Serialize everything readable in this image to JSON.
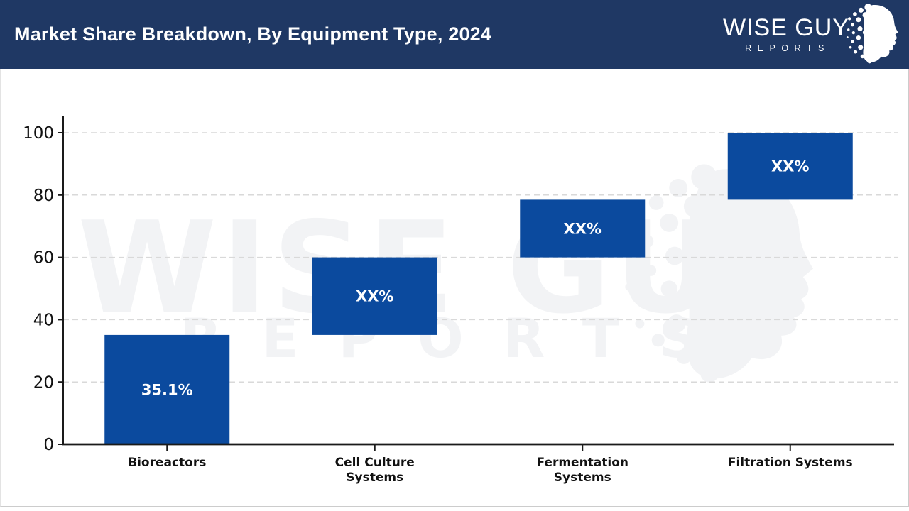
{
  "header": {
    "title": "Market Share Breakdown, By Equipment Type, 2024",
    "logo": {
      "name": "WISE GUY",
      "sub": "REPORTS"
    }
  },
  "watermark": {
    "main": "WISE GU",
    "sub": "REPORTS"
  },
  "chart_data": {
    "type": "bar",
    "subtype": "waterfall",
    "title": "Market Share Breakdown, By Equipment Type, 2024",
    "categories": [
      [
        "Bioreactors"
      ],
      [
        "Cell Culture",
        "Systems"
      ],
      [
        "Fermentation",
        "Systems"
      ],
      [
        "Filtration Systems"
      ]
    ],
    "segments": [
      {
        "category": "Bioreactors",
        "start": 0,
        "end": 35.1,
        "value": 35.1,
        "label": "35.1%"
      },
      {
        "category": "Cell Culture Systems",
        "start": 35.1,
        "end": 60,
        "value": 24.9,
        "label": "XX%"
      },
      {
        "category": "Fermentation Systems",
        "start": 60,
        "end": 78.5,
        "value": 18.5,
        "label": "XX%"
      },
      {
        "category": "Filtration Systems",
        "start": 78.5,
        "end": 100,
        "value": 21.5,
        "label": "XX%"
      }
    ],
    "yticks": [
      0,
      20,
      40,
      60,
      80,
      100
    ],
    "ylim": [
      0,
      105
    ],
    "xlabel": "",
    "ylabel": "",
    "grid": "horizontal-dashed",
    "legend": "none"
  },
  "colors": {
    "header_bg": "#1F3864",
    "bar": "#0B4A9E",
    "bar_label": "#ffffff",
    "axis": "#1a1a1a",
    "tick_text": "#111111",
    "grid": "#d9d9d9",
    "watermark": "#f2f3f5",
    "border": "#cccccc"
  }
}
